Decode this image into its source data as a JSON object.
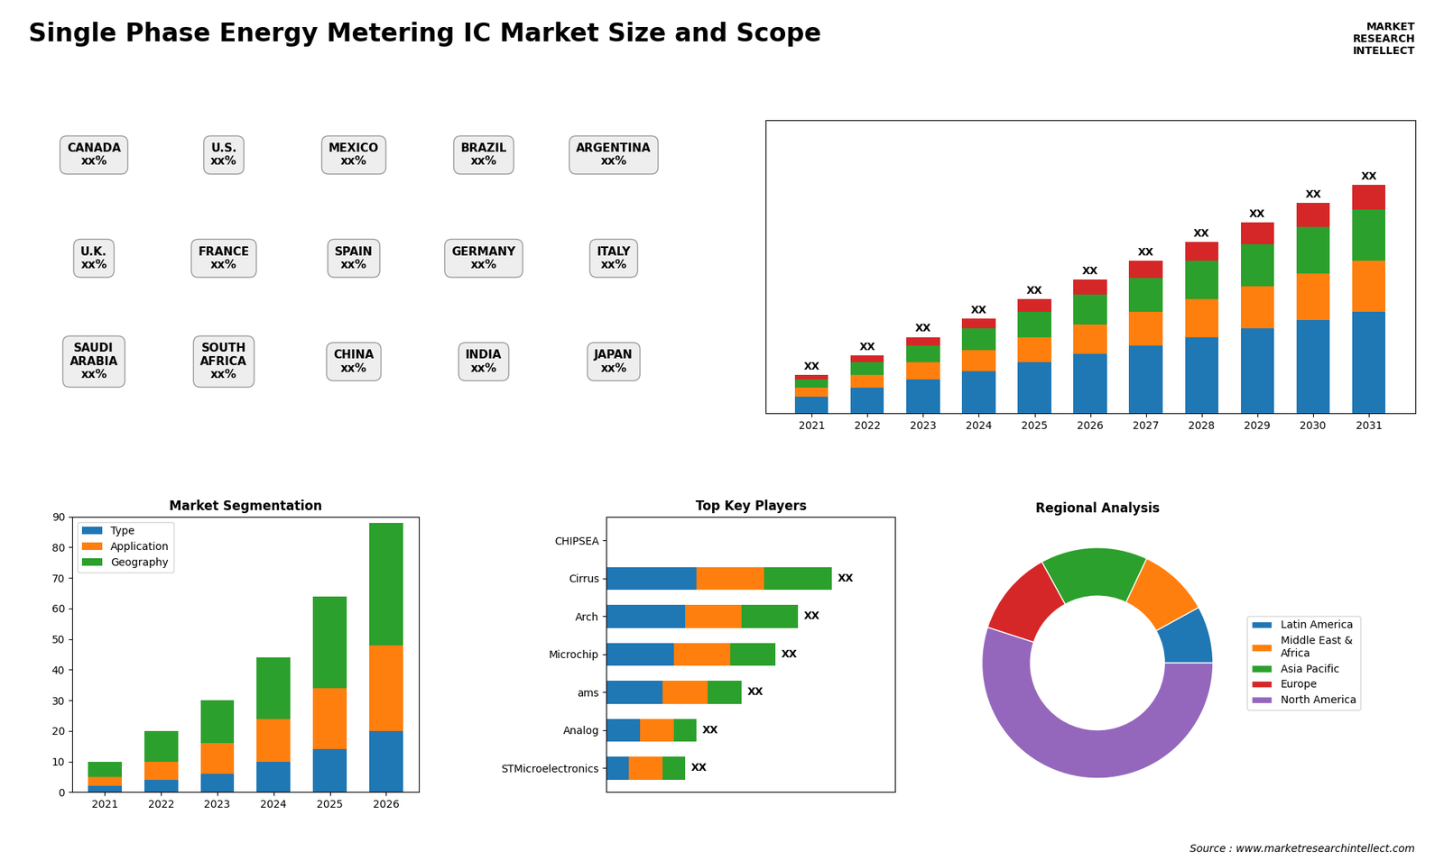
{
  "title": "Single Phase Energy Metering IC Market Size and Scope",
  "annotations": [
    "MARKET\nRESEARCH\nINTELLECT",
    "Source : www.marketresearchintellect.com"
  ],
  "chart_data": [
    {
      "type": "map",
      "annotations": [
        "CANADA\nxx%",
        "U.S.\nxx%",
        "MEXICO\nxx%",
        "BRAZIL\nxx%",
        "ARGENTINA\nxx%",
        "U.K.\nxx%",
        "FRANCE\nxx%",
        "SPAIN\nxx%",
        "GERMANY\nxx%",
        "ITALY\nxx%",
        "SAUDI\nARABIA\nxx%",
        "SOUTH\nAFRICA\nxx%",
        "CHINA\nxx%",
        "INDIA\nxx%",
        "JAPAN\nxx%"
      ]
    },
    {
      "type": "bar",
      "stacked": true,
      "categories": [
        "2021",
        "2022",
        "2023",
        "2024",
        "2025",
        "2026",
        "2027",
        "2028",
        "2029",
        "2030",
        "2031"
      ],
      "series": [
        {
          "values": [
            2,
            3,
            4,
            5,
            6,
            7,
            8,
            9,
            10,
            11,
            12
          ]
        },
        {
          "values": [
            1,
            1.5,
            2,
            2.5,
            3,
            3.5,
            4,
            4.5,
            5,
            5.5,
            6
          ]
        },
        {
          "values": [
            1,
            1.5,
            2,
            2.5,
            3,
            3.5,
            4,
            4.5,
            5,
            5.5,
            6
          ]
        },
        {
          "values": [
            0.5,
            0.8,
            1,
            1.2,
            1.5,
            1.8,
            2,
            2.2,
            2.5,
            2.8,
            3
          ]
        }
      ],
      "ylim": [
        0,
        34.56
      ],
      "tick_labels": "x",
      "value_labels": [
        "XX",
        "XX",
        "XX",
        "XX",
        "XX",
        "XX",
        "XX",
        "XX",
        "XX",
        "XX",
        "XX"
      ]
    },
    {
      "type": "bar",
      "title": "Market Segmentation",
      "stacked": true,
      "categories": [
        "2021",
        "2022",
        "2023",
        "2024",
        "2025",
        "2026"
      ],
      "series": [
        {
          "name": "Type",
          "values": [
            2,
            4,
            6,
            10,
            14,
            20
          ]
        },
        {
          "name": "Application",
          "values": [
            3,
            6,
            10,
            14,
            20,
            28
          ]
        },
        {
          "name": "Geography",
          "values": [
            5,
            10,
            14,
            20,
            30,
            40
          ]
        }
      ],
      "ylim": [
        0,
        90
      ],
      "yticks": [
        0,
        10,
        20,
        30,
        40,
        50,
        60,
        70,
        80,
        90
      ],
      "legend": "upper left"
    },
    {
      "type": "bar",
      "title": "Top Key Players",
      "orientation": "horizontal",
      "stacked": true,
      "categories": [
        "CHIPSEA",
        "Cirrus",
        "Arch",
        "Microchip",
        "ams",
        "Analog",
        "STMicroelectronics"
      ],
      "series": [
        {
          "values": [
            0,
            4,
            3.5,
            3,
            2.5,
            1.5,
            1
          ]
        },
        {
          "values": [
            0,
            3,
            2.5,
            2.5,
            2,
            1.5,
            1.5
          ]
        },
        {
          "values": [
            0,
            3,
            2.5,
            2,
            1.5,
            1,
            1
          ]
        }
      ],
      "xlim": [
        0,
        12.8
      ],
      "tick_labels": "y",
      "value_labels": [
        null,
        "XX",
        "XX",
        "XX",
        "XX",
        "XX",
        "XX"
      ]
    },
    {
      "type": "donut",
      "title": "Regional Analysis",
      "categories": [
        "Latin America",
        "Middle East &\nAfrica",
        "Asia Pacific",
        "Europe",
        "North America"
      ],
      "values": [
        8,
        10,
        15,
        12,
        55
      ],
      "legend": "center left"
    }
  ]
}
